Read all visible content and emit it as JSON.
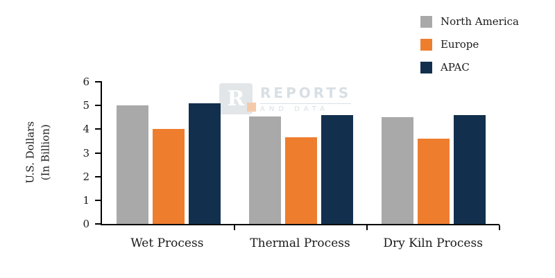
{
  "watermark": {
    "logo_letter": "R",
    "line1": "REPORTS",
    "line2": "AND DATA"
  },
  "chart_data": {
    "type": "bar",
    "title": "",
    "categories": [
      "Wet Process",
      "Thermal Process",
      "Dry Kiln Process"
    ],
    "series": [
      {
        "name": "North America",
        "color": "#a9a9a9",
        "values": [
          5.0,
          4.55,
          4.5
        ]
      },
      {
        "name": "Europe",
        "color": "#ee7d2e",
        "values": [
          4.0,
          3.65,
          3.6
        ]
      },
      {
        "name": "APAC",
        "color": "#12304e",
        "values": [
          5.1,
          4.6,
          4.6
        ]
      }
    ],
    "xlabel": "",
    "ylabel": "U.S. Dollars (In Billion)",
    "ylabel_lines": [
      "U.S. Dollars",
      "(In Billion)"
    ],
    "ylim": [
      0,
      6
    ],
    "yticks": [
      0,
      1,
      2,
      3,
      4,
      5,
      6
    ],
    "grid": false,
    "legend_position": "top-right"
  }
}
